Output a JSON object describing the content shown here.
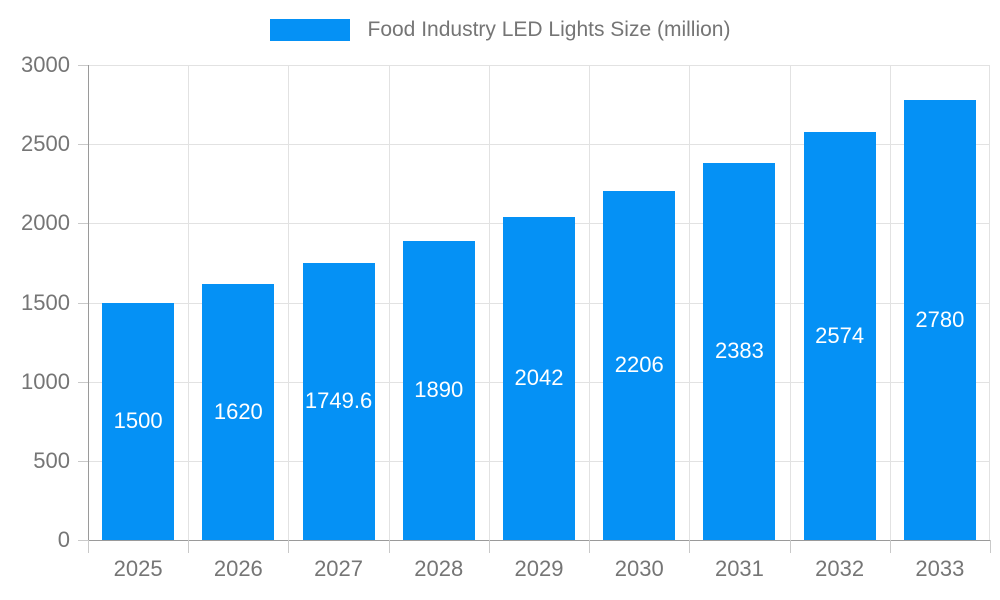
{
  "legend": {
    "label": "Food Industry LED Lights Size (million)"
  },
  "chart_data": {
    "type": "bar",
    "title": "Food Industry LED Lights Size (million)",
    "categories": [
      "2025",
      "2026",
      "2027",
      "2028",
      "2029",
      "2030",
      "2031",
      "2032",
      "2033"
    ],
    "values": [
      1500,
      1620,
      1749.6,
      1890,
      2042,
      2206,
      2383,
      2574,
      2780
    ],
    "value_labels": [
      "1500",
      "1620",
      "1749.6",
      "1890",
      "2042",
      "2206",
      "2383",
      "2574",
      "2780"
    ],
    "xlabel": "",
    "ylabel": "",
    "ylim": [
      0,
      3000
    ],
    "yticks": [
      0,
      500,
      1000,
      1500,
      2000,
      2500,
      3000
    ],
    "grid": true,
    "legend_position": "top",
    "bar_color": "#0591f5",
    "value_label_color": "#ffffff"
  },
  "colors": {
    "accent": "#0591f5",
    "grid": "#e2e2e2",
    "axis": "#9a9a9a",
    "tick_text": "#757575",
    "background": "#ffffff"
  }
}
